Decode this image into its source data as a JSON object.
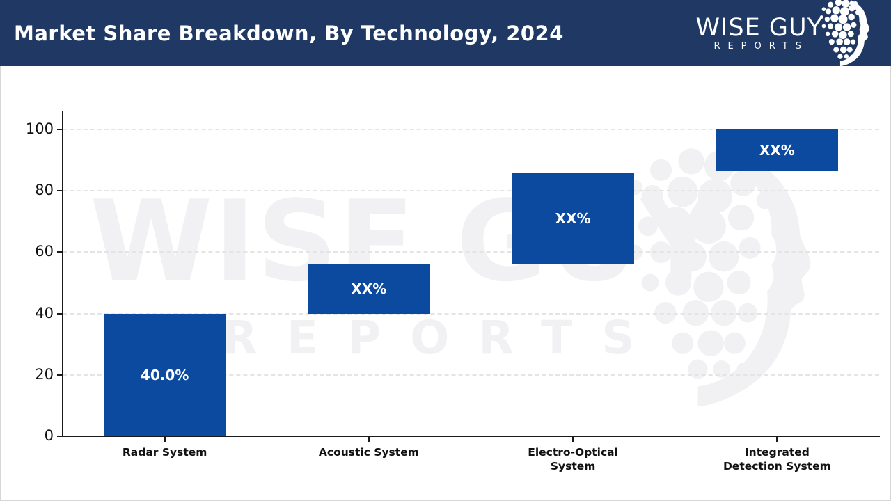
{
  "header": {
    "title": "Market Share Breakdown, By Technology, 2024",
    "background": "#1f3864",
    "logo": {
      "line1": "WISE GUY",
      "line2": "REPORTS"
    }
  },
  "watermark": {
    "line1": "WISE GUY",
    "line2": "REPORTS",
    "color": "#f1f1f3"
  },
  "chart_data": {
    "type": "bar",
    "subtype": "waterfall",
    "title": "Market Share Breakdown, By Technology, 2024",
    "categories": [
      "Radar System",
      "Acoustic System",
      "Electro-Optical System",
      "Integrated Detection System"
    ],
    "categories_wrapped": [
      [
        "Radar System"
      ],
      [
        "Acoustic System"
      ],
      [
        "Electro-Optical",
        "System"
      ],
      [
        "Integrated",
        "Detection System"
      ]
    ],
    "segments": [
      {
        "category": "Radar System",
        "start": 0,
        "end": 40,
        "label": "40.0%"
      },
      {
        "category": "Acoustic System",
        "start": 40,
        "end": 56,
        "label": "XX%"
      },
      {
        "category": "Electro-Optical System",
        "start": 56,
        "end": 86,
        "label": "XX%"
      },
      {
        "category": "Integrated Detection System",
        "start": 86.5,
        "end": 100,
        "label": "XX%"
      }
    ],
    "xlabel": "",
    "ylabel": "",
    "ylim": [
      0,
      100
    ],
    "yticks": [
      0,
      20,
      40,
      60,
      80,
      100
    ],
    "grid": "horizontal-dashed",
    "legend": "none",
    "bar_color": "#0b4a9e",
    "bar_label_color": "#ffffff",
    "grid_color": "#e4e4e4",
    "axis_color": "#1a1a1a"
  }
}
